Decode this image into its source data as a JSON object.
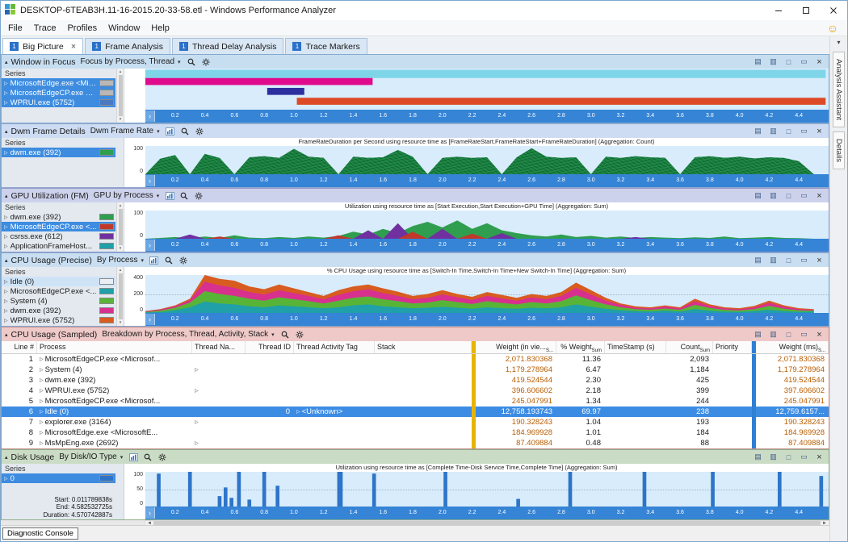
{
  "window": {
    "title": "DESKTOP-6TEAB3H.11-16-2015.20-33-58.etl - Windows Performance Analyzer"
  },
  "menu": {
    "items": [
      "File",
      "Trace",
      "Profiles",
      "Window",
      "Help"
    ]
  },
  "tabs": [
    {
      "badge": "1",
      "label": "Big Picture"
    },
    {
      "badge": "1",
      "label": "Frame Analysis"
    },
    {
      "badge": "1",
      "label": "Thread Delay Analysis"
    },
    {
      "badge": "1",
      "label": "Trace Markers"
    }
  ],
  "side_tabs": [
    "Analysis Assistant",
    "Details"
  ],
  "labels": {
    "series": "Series"
  },
  "timeline": {
    "axis_max": 4.6,
    "ticks": [
      "0.2",
      "0.4",
      "0.6",
      "0.8",
      "1.0",
      "1.2",
      "1.4",
      "1.6",
      "1.8",
      "2.0",
      "2.2",
      "2.4",
      "2.6",
      "2.8",
      "3.0",
      "3.2",
      "3.4",
      "3.6",
      "3.8",
      "4.0",
      "4.2",
      "4.4"
    ]
  },
  "trace_times": {
    "start_label": "Start:",
    "start_value": "0.011789838s",
    "end_label": "End:",
    "end_value": "4.582532725s",
    "duration_label": "Duration:",
    "duration_value": "4.570742887s"
  },
  "footer": {
    "diagnostic_console": "Diagnostic Console"
  },
  "panels": {
    "focus": {
      "title": "Window in Focus",
      "preset": "Focus by Process, Thread",
      "colors": {
        "header": "#c7def1",
        "border": "#83abd1"
      },
      "series": [
        {
          "label": "MicrosoftEdge.exe <Micro...",
          "color": "#b8b8b8"
        },
        {
          "label": "MicrosoftEdgeCP.exe <Mi...",
          "color": "#b8b8b8"
        },
        {
          "label": "WPRUI.exe (5752)",
          "color": "#4a78c2"
        }
      ]
    },
    "dwm": {
      "title": "Dwm Frame Details",
      "preset": "Dwm Frame Rate",
      "colors": {
        "header": "#cddcf2",
        "border": "#8fa8cc"
      },
      "chart_title": "FrameRateDuration per Second using resource time as [FrameRateStart,FrameRateStart+FrameRateDuration] (Aggregation: Count)",
      "y_labels": [
        "100",
        "0"
      ],
      "series": [
        {
          "label": "dwm.exe (392)",
          "color": "#2f9e4f"
        }
      ]
    },
    "gpu": {
      "title": "GPU Utilization (FM)",
      "preset": "GPU by Process",
      "colors": {
        "header": "#cdd2ec",
        "border": "#9298c8"
      },
      "chart_title": "Utilization using resource time as [Start Execution,Start Execution+GPU Time] (Aggregation: Sum)",
      "y_labels": [
        "100",
        "0"
      ],
      "series": [
        {
          "label": "dwm.exe (392)",
          "color": "#2f9e4f"
        },
        {
          "label": "MicrosoftEdgeCP.exe <...",
          "color": "#c0392b"
        },
        {
          "label": "csrss.exe (612)",
          "color": "#7030a0"
        },
        {
          "label": "ApplicationFrameHost...",
          "color": "#20a0a8"
        }
      ]
    },
    "cpu": {
      "title": "CPU Usage (Precise)",
      "preset": "By Process",
      "colors": {
        "header": "#c9def1",
        "border": "#83abd1"
      },
      "chart_title": "% CPU Usage using resource time as [Switch-In Time,Switch-In Time+New Switch-In Time] (Aggregation: Sum)",
      "y_labels": [
        "400",
        "200",
        "0"
      ],
      "series": [
        {
          "label": "Idle (0)",
          "color": "#e8eef4"
        },
        {
          "label": "MicrosoftEdgeCP.exe <...",
          "color": "#20a0a8"
        },
        {
          "label": "System (4)",
          "color": "#58b437"
        },
        {
          "label": "dwm.exe (392)",
          "color": "#d8308f"
        },
        {
          "label": "WPRUI.exe (5752)",
          "color": "#d85c20"
        }
      ]
    },
    "sampled": {
      "title": "CPU Usage (Sampled)",
      "preset": "Breakdown by Process, Thread, Activity, Stack",
      "colors": {
        "header": "#eec9c8",
        "border": "#c48e8e"
      },
      "columns": [
        {
          "key": "line",
          "label": "Line #",
          "w": 44,
          "align": "right"
        },
        {
          "key": "process",
          "label": "Process",
          "w": 192
        },
        {
          "key": "thread_name",
          "label": "Thread Na...",
          "w": 66
        },
        {
          "key": "thread_id",
          "label": "Thread ID",
          "w": 60,
          "align": "right"
        },
        {
          "key": "tag",
          "label": "Thread Activity Tag",
          "w": 100
        },
        {
          "key": "stack",
          "label": "Stack",
          "w": 120
        },
        {
          "key": "div1",
          "divider": "gold",
          "w": 5
        },
        {
          "key": "weight_vp",
          "label": "Weight (in vie...",
          "sub": "S...",
          "w": 100,
          "align": "right",
          "num": true
        },
        {
          "key": "pct",
          "label": "% Weight",
          "sub": "Sum",
          "w": 60,
          "align": "right"
        },
        {
          "key": "timestamp",
          "label": "TimeStamp (s)",
          "w": 76
        },
        {
          "key": "count",
          "label": "Count",
          "sub": "Sum",
          "w": 58,
          "align": "right"
        },
        {
          "key": "priority",
          "label": "Priority",
          "w": 48
        },
        {
          "key": "div2",
          "divider": "blue",
          "w": 5
        },
        {
          "key": "weight_ms",
          "label": "Weight (ms)",
          "sub": "S...",
          "flex": true,
          "align": "right",
          "num": true
        }
      ],
      "rows": [
        {
          "line": "1",
          "process": "MicrosoftEdgeCP.exe <Microsof...",
          "proc_exp": true,
          "weight_vp": "2,071.830368",
          "pct": "11.36",
          "count": "2,093",
          "weight_ms": "2,071.830368"
        },
        {
          "line": "2",
          "process": "System (4)",
          "proc_exp": true,
          "thread_exp": true,
          "weight_vp": "1,179.278964",
          "pct": "6.47",
          "count": "1,184",
          "weight_ms": "1,179.278964"
        },
        {
          "line": "3",
          "process": "dwm.exe (392)",
          "proc_exp": true,
          "weight_vp": "419.524544",
          "pct": "2.30",
          "count": "425",
          "weight_ms": "419.524544"
        },
        {
          "line": "4",
          "process": "WPRUI.exe (5752)",
          "proc_exp": true,
          "thread_exp": true,
          "weight_vp": "396.606602",
          "pct": "2.18",
          "count": "399",
          "weight_ms": "397.606602"
        },
        {
          "line": "5",
          "process": "MicrosoftEdgeCP.exe <Microsof...",
          "proc_exp": true,
          "weight_vp": "245.047991",
          "pct": "1.34",
          "count": "244",
          "weight_ms": "245.047991"
        },
        {
          "line": "6",
          "process": "Idle (0)",
          "proc_exp": true,
          "thread_id": "0",
          "tag": "<Unknown>",
          "tag_exp": true,
          "weight_vp": "12,758.193743",
          "pct": "69.97",
          "count": "238",
          "weight_ms": "12,759.6157...",
          "selected": true
        },
        {
          "line": "7",
          "process": "explorer.exe (3164)",
          "proc_exp": true,
          "thread_exp": true,
          "weight_vp": "190.328243",
          "pct": "1.04",
          "count": "193",
          "weight_ms": "190.328243"
        },
        {
          "line": "8",
          "process": "MicrosoftEdge.exe <MicrosoftE...",
          "proc_exp": true,
          "weight_vp": "184.969928",
          "pct": "1.01",
          "count": "184",
          "weight_ms": "184.969928"
        },
        {
          "line": "9",
          "process": "MsMpEng.exe (2692)",
          "proc_exp": true,
          "thread_exp": true,
          "weight_vp": "87.409884",
          "pct": "0.48",
          "count": "88",
          "weight_ms": "87.409884"
        }
      ]
    },
    "disk": {
      "title": "Disk Usage",
      "preset": "By Disk/IO Type",
      "colors": {
        "header": "#cbdcc6",
        "border": "#8fae88"
      },
      "chart_title": "Utilization using resource time as [Complete Time-Disk Service Time,Complete Time] (Aggregation: Sum)",
      "y_labels": [
        "100",
        "50",
        "0"
      ],
      "series": [
        {
          "label": "0",
          "color": "#2e75c8"
        }
      ]
    }
  },
  "chart_data": [
    {
      "id": "focus",
      "type": "gantt",
      "x_max": 4.6,
      "bars": [
        {
          "series": "focus-background",
          "start": 0.0,
          "end": 4.58,
          "row_y": 0.03,
          "row_h": 0.2,
          "color": "#7ed5e8"
        },
        {
          "series": "MicrosoftEdge.exe",
          "start": 0.0,
          "end": 1.53,
          "row_y": 0.23,
          "row_h": 0.17,
          "color": "#df0a8c"
        },
        {
          "series": "MicrosoftEdgeCP.exe",
          "start": 0.82,
          "end": 1.07,
          "row_y": 0.47,
          "row_h": 0.17,
          "color": "#2d2f9e"
        },
        {
          "series": "WPRUI.exe",
          "start": 1.02,
          "end": 4.58,
          "row_y": 0.71,
          "row_h": 0.17,
          "color": "#dc4a26"
        }
      ]
    },
    {
      "id": "dwm",
      "type": "area",
      "ylim": [
        0,
        100
      ],
      "x_step": 0.1,
      "color": "#1f8a46",
      "hatch": "#0b4f27",
      "values": [
        0,
        55,
        68,
        0,
        72,
        58,
        0,
        60,
        64,
        58,
        90,
        62,
        58,
        0,
        62,
        58,
        60,
        86,
        62,
        0,
        58,
        62,
        58,
        60,
        0,
        60,
        92,
        62,
        58,
        60,
        0,
        62,
        58,
        64,
        60,
        58,
        0,
        60,
        64,
        58,
        62,
        56,
        60,
        58,
        46,
        0
      ]
    },
    {
      "id": "gpu",
      "type": "area",
      "ylim": [
        0,
        100
      ],
      "x_step": 0.1,
      "series": [
        {
          "name": "dwm.exe",
          "color": "#2f9e4f",
          "values": [
            0,
            3,
            6,
            2,
            8,
            3,
            12,
            4,
            2,
            6,
            3,
            8,
            4,
            10,
            25,
            15,
            35,
            20,
            45,
            60,
            40,
            65,
            35,
            55,
            30,
            20,
            12,
            8,
            15,
            6,
            10,
            4,
            8,
            3,
            6,
            4,
            2,
            5,
            3,
            8,
            2,
            4,
            6,
            3,
            2,
            0
          ]
        },
        {
          "name": "csrss.exe",
          "color": "#7030a0",
          "values": [
            0,
            0,
            0,
            15,
            0,
            0,
            0,
            0,
            0,
            0,
            0,
            0,
            0,
            0,
            0,
            30,
            0,
            55,
            0,
            0,
            35,
            0,
            0,
            0,
            20,
            0,
            0,
            0,
            0,
            0,
            0,
            0,
            0,
            6,
            0,
            0,
            0,
            0,
            0,
            0,
            0,
            0,
            0,
            0,
            0,
            0
          ]
        },
        {
          "name": "MicrosoftEdgeCP.exe",
          "color": "#c0392b",
          "values": [
            0,
            0,
            0,
            0,
            0,
            8,
            0,
            0,
            0,
            0,
            0,
            0,
            0,
            12,
            0,
            0,
            0,
            0,
            25,
            0,
            0,
            0,
            18,
            0,
            0,
            0,
            0,
            0,
            0,
            0,
            0,
            0,
            0,
            0,
            0,
            0,
            0,
            0,
            0,
            0,
            0,
            0,
            0,
            0,
            0,
            0
          ]
        }
      ]
    },
    {
      "id": "cpu",
      "type": "stacked-area",
      "ylim": [
        0,
        400
      ],
      "x_step": 0.1,
      "series": [
        {
          "name": "ApplicationFrameHost",
          "color": "#20a0a8",
          "values": [
            5,
            10,
            30,
            60,
            120,
            100,
            90,
            70,
            60,
            80,
            70,
            60,
            50,
            60,
            80,
            90,
            70,
            60,
            50,
            55,
            65,
            55,
            45,
            60,
            50,
            45,
            55,
            50,
            60,
            90,
            65,
            45,
            30,
            20,
            15,
            25,
            15,
            40,
            25,
            15,
            12,
            20,
            35,
            20,
            12,
            15
          ]
        },
        {
          "name": "System",
          "color": "#58b437",
          "values": [
            5,
            15,
            25,
            50,
            110,
            100,
            90,
            80,
            70,
            85,
            75,
            65,
            50,
            70,
            80,
            85,
            75,
            65,
            50,
            55,
            70,
            60,
            50,
            65,
            55,
            45,
            60,
            50,
            65,
            95,
            70,
            45,
            30,
            20,
            18,
            22,
            18,
            45,
            28,
            18,
            15,
            20,
            40,
            25,
            15,
            10
          ]
        },
        {
          "name": "dwm.exe",
          "color": "#d8308f",
          "values": [
            5,
            10,
            15,
            25,
            100,
            90,
            85,
            70,
            65,
            75,
            65,
            55,
            45,
            60,
            70,
            75,
            65,
            55,
            45,
            50,
            60,
            50,
            42,
            55,
            48,
            40,
            50,
            45,
            55,
            80,
            60,
            40,
            25,
            15,
            15,
            20,
            15,
            38,
            22,
            15,
            12,
            18,
            32,
            20,
            12,
            8
          ]
        },
        {
          "name": "WPRUI.exe",
          "color": "#d85c20",
          "values": [
            5,
            5,
            10,
            15,
            70,
            70,
            75,
            60,
            55,
            60,
            50,
            40,
            35,
            50,
            50,
            50,
            50,
            45,
            35,
            40,
            45,
            35,
            33,
            40,
            37,
            30,
            35,
            35,
            40,
            55,
            45,
            30,
            15,
            15,
            12,
            13,
            12,
            27,
            15,
            12,
            11,
            17,
            23,
            15,
            11,
            7
          ]
        }
      ]
    },
    {
      "id": "disk",
      "type": "bars",
      "ylim": [
        0,
        100
      ],
      "color": "#2e75c8",
      "spikes": [
        {
          "t": 0.09,
          "h": 95
        },
        {
          "t": 0.3,
          "h": 100
        },
        {
          "t": 0.5,
          "h": 30
        },
        {
          "t": 0.54,
          "h": 55
        },
        {
          "t": 0.58,
          "h": 25
        },
        {
          "t": 0.63,
          "h": 100
        },
        {
          "t": 0.7,
          "h": 20
        },
        {
          "t": 0.8,
          "h": 100
        },
        {
          "t": 0.89,
          "h": 60
        },
        {
          "t": 1.31,
          "h": 100,
          "w": 0.8
        },
        {
          "t": 1.54,
          "h": 95
        },
        {
          "t": 2.02,
          "h": 100
        },
        {
          "t": 2.51,
          "h": 22
        },
        {
          "t": 2.86,
          "h": 100
        },
        {
          "t": 3.36,
          "h": 100
        },
        {
          "t": 3.82,
          "h": 100
        },
        {
          "t": 4.27,
          "h": 100
        },
        {
          "t": 4.55,
          "h": 88
        }
      ]
    }
  ]
}
